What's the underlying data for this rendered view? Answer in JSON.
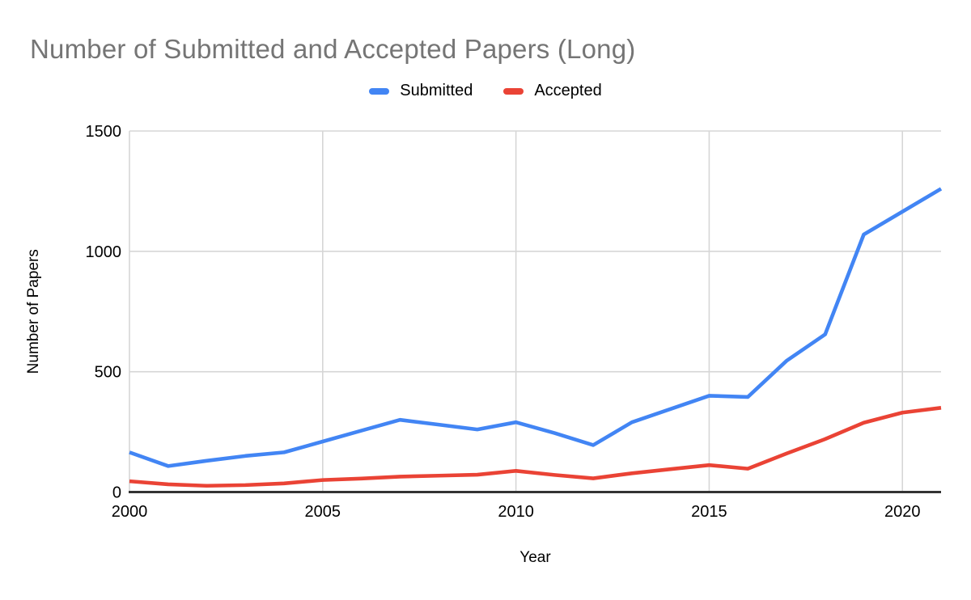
{
  "chart_data": {
    "type": "line",
    "title": "Number of Submitted and Accepted Papers (Long)",
    "title_color": "#757575",
    "xlabel": "Year",
    "ylabel": "Number of Papers",
    "x": [
      2000,
      2001,
      2002,
      2003,
      2004,
      2005,
      2006,
      2007,
      2008,
      2009,
      2010,
      2011,
      2012,
      2013,
      2014,
      2015,
      2016,
      2017,
      2018,
      2019,
      2020,
      2021
    ],
    "series": [
      {
        "name": "Submitted",
        "color": "#4285f4",
        "values": [
          165,
          108,
          130,
          150,
          165,
          210,
          255,
          300,
          280,
          260,
          290,
          245,
          195,
          290,
          345,
          400,
          395,
          545,
          655,
          1070,
          1165,
          1260
        ]
      },
      {
        "name": "Accepted",
        "color": "#ea4335",
        "values": [
          45,
          32,
          26,
          29,
          36,
          50,
          56,
          64,
          68,
          72,
          88,
          71,
          57,
          78,
          95,
          112,
          97,
          160,
          220,
          288,
          330,
          350
        ]
      }
    ],
    "xlim": [
      2000,
      2021
    ],
    "ylim": [
      0,
      1500
    ],
    "xticks": [
      2000,
      2005,
      2010,
      2015,
      2020
    ],
    "yticks": [
      0,
      500,
      1000,
      1500
    ],
    "grid": true,
    "legend_position": "top",
    "gridline_color": "#d6d6d6",
    "axis_line_color": "#333333",
    "tick_label_color": "#000000"
  }
}
